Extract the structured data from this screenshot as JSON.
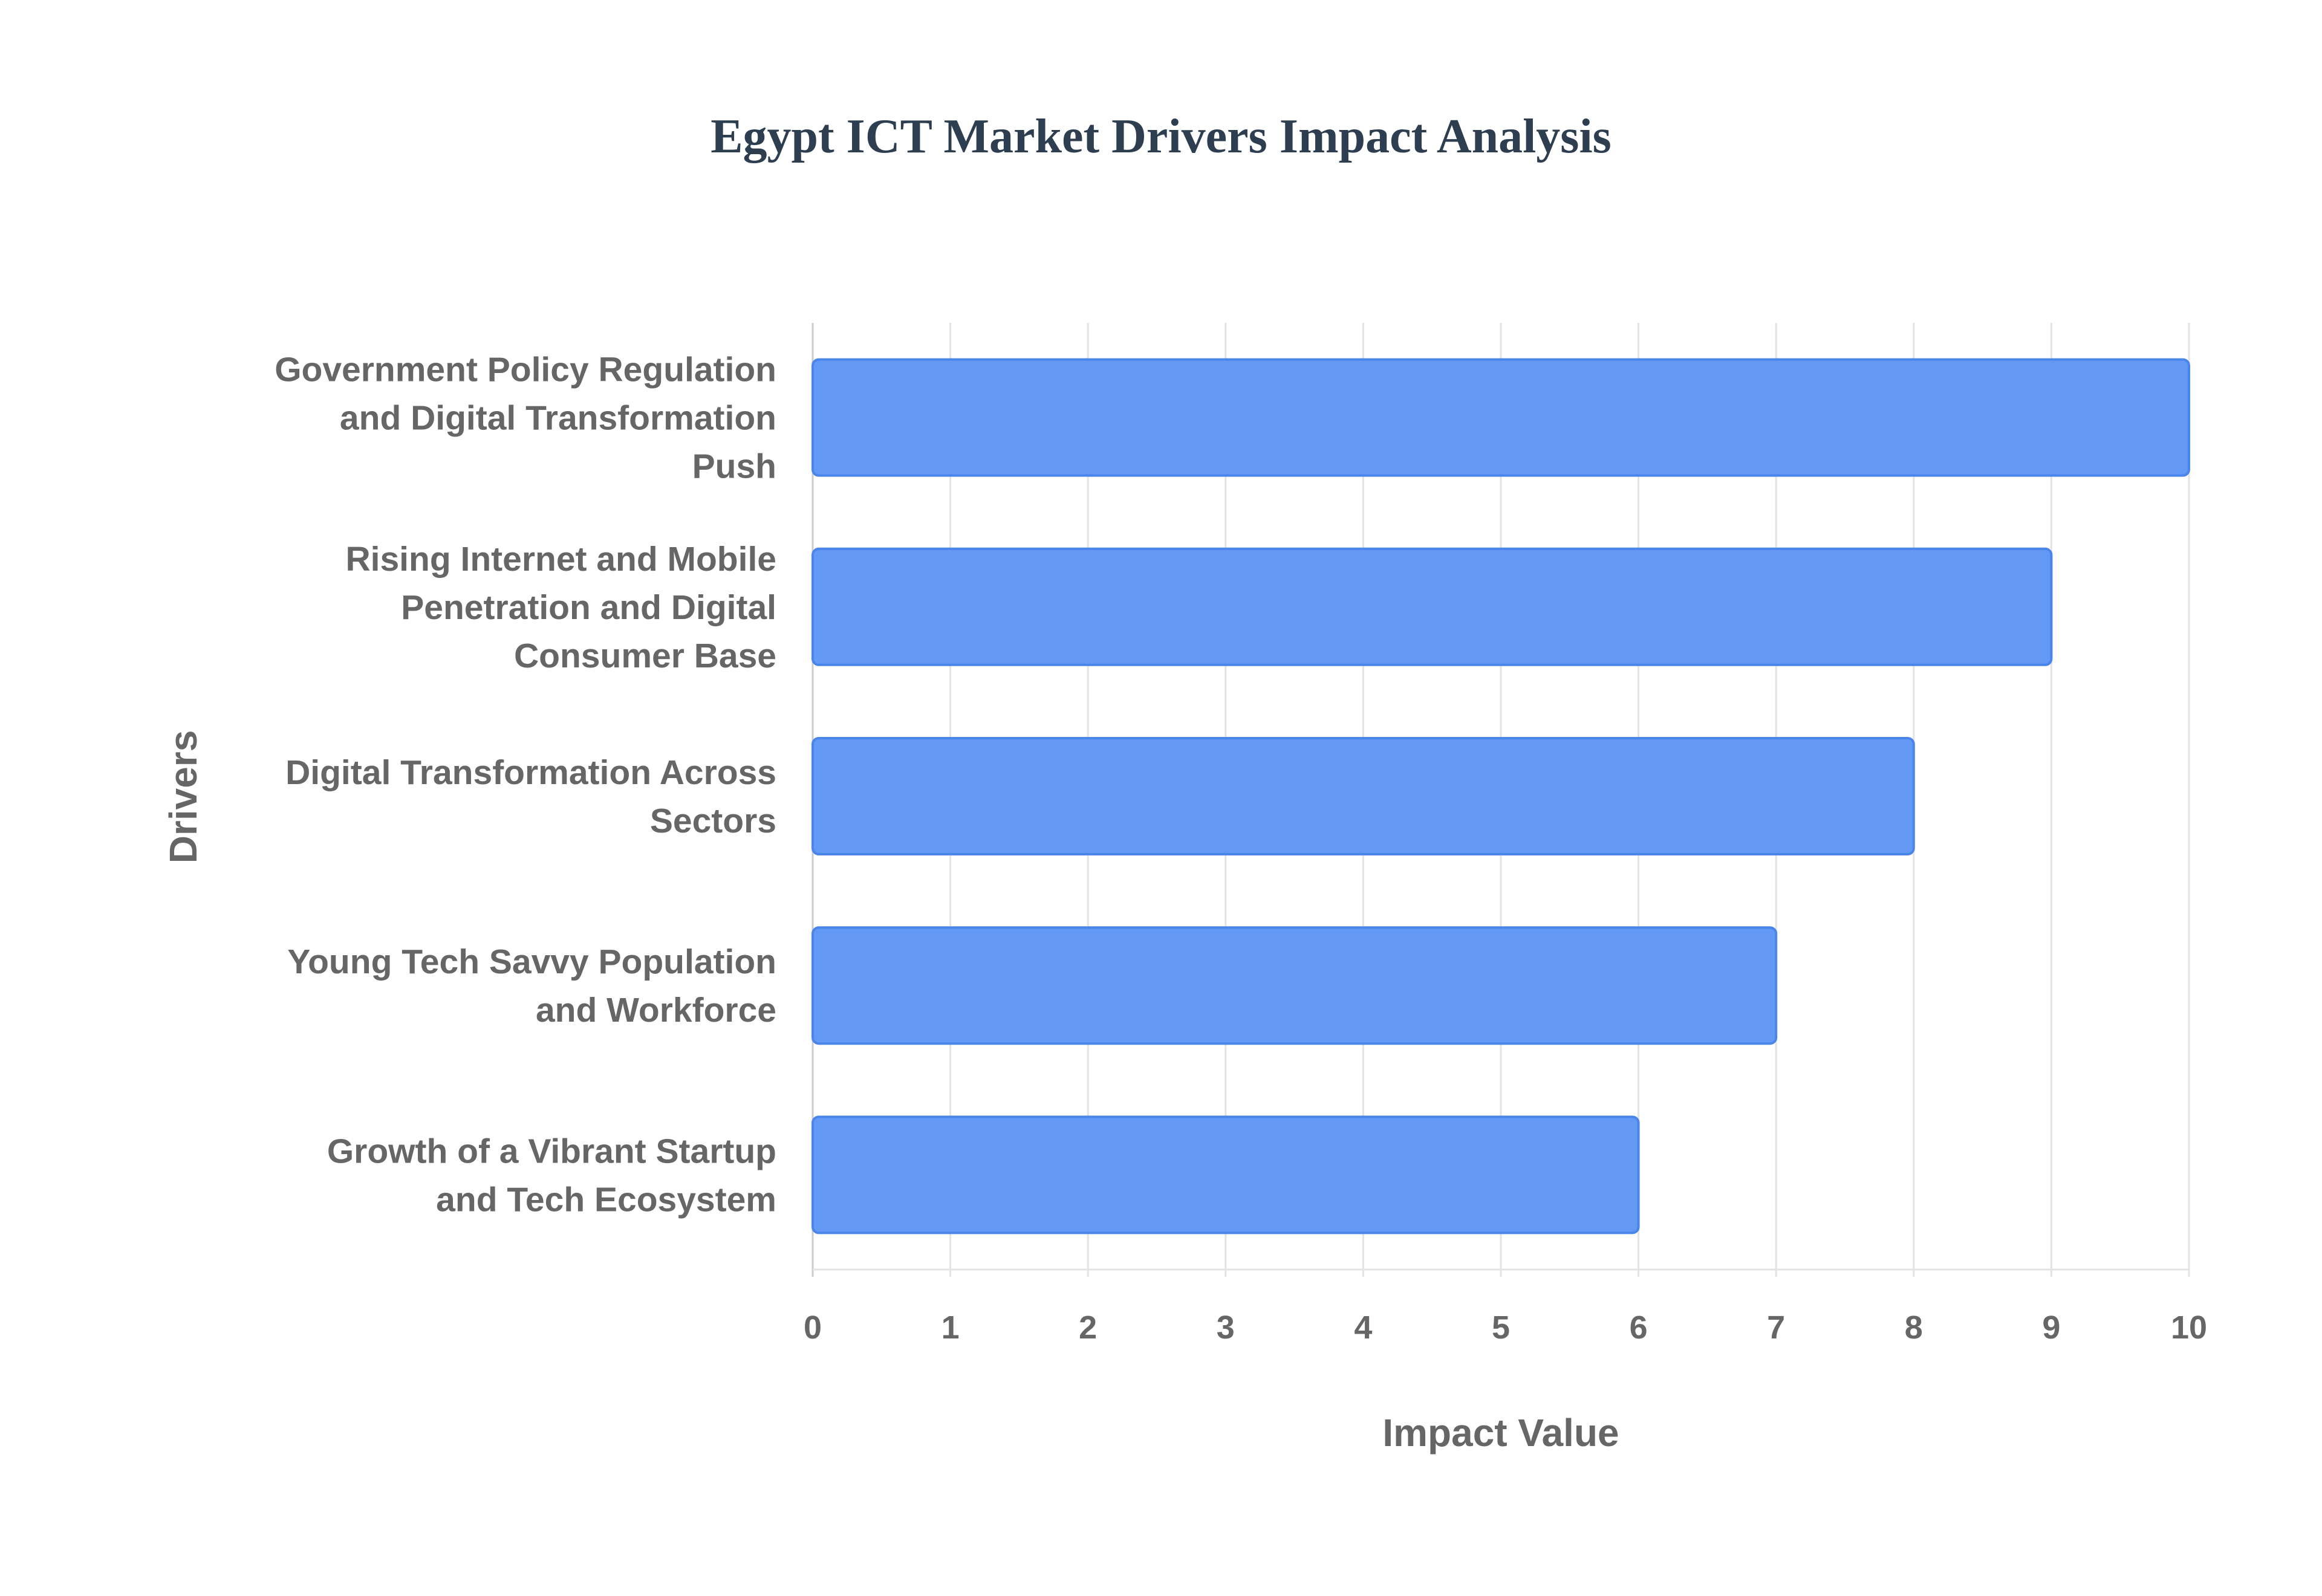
{
  "chart_data": {
    "type": "bar",
    "orientation": "horizontal",
    "title": "Egypt ICT Market Drivers Impact Analysis",
    "xlabel": "Impact Value",
    "ylabel": "Drivers",
    "xlim": [
      0,
      10
    ],
    "xticks": [
      "0",
      "1",
      "2",
      "3",
      "4",
      "5",
      "6",
      "7",
      "8",
      "9",
      "10"
    ],
    "grid": true,
    "categories": [
      [
        "Government Policy Regulation",
        "and Digital Transformation",
        "Push"
      ],
      [
        "Rising Internet and Mobile",
        "Penetration and Digital",
        "Consumer Base"
      ],
      [
        "Digital Transformation Across",
        "Sectors"
      ],
      [
        "Young Tech Savvy Population",
        "and Workforce"
      ],
      [
        "Growth of a Vibrant Startup",
        "and Tech Ecosystem"
      ]
    ],
    "values": [
      10,
      9,
      8,
      7,
      6
    ],
    "bar_color": "#6399f4",
    "bar_border_color": "#4a86ea"
  }
}
